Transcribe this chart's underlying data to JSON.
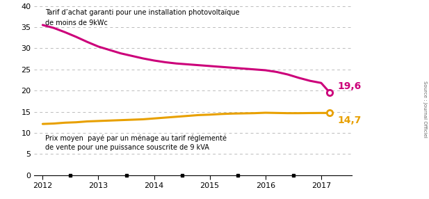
{
  "pink_x": [
    2012,
    2012.2,
    2012.4,
    2012.6,
    2012.8,
    2013,
    2013.2,
    2013.4,
    2013.6,
    2013.8,
    2014,
    2014.2,
    2014.4,
    2014.6,
    2014.8,
    2015,
    2015.2,
    2015.4,
    2015.6,
    2015.8,
    2016,
    2016.2,
    2016.4,
    2016.6,
    2016.8,
    2017,
    2017.15
  ],
  "pink_y": [
    35.5,
    34.8,
    33.8,
    32.7,
    31.5,
    30.4,
    29.6,
    28.8,
    28.2,
    27.6,
    27.1,
    26.7,
    26.4,
    26.2,
    26.0,
    25.8,
    25.6,
    25.4,
    25.2,
    25.0,
    24.8,
    24.4,
    23.8,
    23.0,
    22.3,
    21.8,
    19.6
  ],
  "orange_x": [
    2012,
    2012.2,
    2012.4,
    2012.6,
    2012.8,
    2013,
    2013.2,
    2013.4,
    2013.6,
    2013.8,
    2014,
    2014.2,
    2014.4,
    2014.6,
    2014.8,
    2015,
    2015.2,
    2015.4,
    2015.6,
    2015.8,
    2016,
    2016.2,
    2016.4,
    2016.6,
    2016.8,
    2017,
    2017.15
  ],
  "orange_y": [
    12.1,
    12.2,
    12.4,
    12.5,
    12.7,
    12.8,
    12.9,
    13.0,
    13.1,
    13.2,
    13.4,
    13.6,
    13.8,
    14.0,
    14.2,
    14.3,
    14.45,
    14.55,
    14.6,
    14.65,
    14.75,
    14.7,
    14.65,
    14.65,
    14.68,
    14.7,
    14.7
  ],
  "pink_color": "#cc007a",
  "orange_color": "#e8a000",
  "pink_label_value": "19,6",
  "orange_label_value": "14,7",
  "pink_annotation_line1": "Tarif d’achat garanti pour une installation photovoltaïque",
  "pink_annotation_line2": "de moins de 9kWc",
  "orange_annotation_line1": "Prix moyen  payé par un ménage au tarif réglementé",
  "orange_annotation_line2": "de vente pour une puissance souscrite de 9 kVA",
  "source_text": "Source : Journal Officiel",
  "xlim": [
    2011.85,
    2017.55
  ],
  "ylim": [
    0,
    40
  ],
  "yticks": [
    0,
    5,
    10,
    15,
    20,
    25,
    30,
    35,
    40
  ],
  "xticks": [
    2012,
    2013,
    2014,
    2015,
    2016,
    2017
  ],
  "mid_ticks": [
    2012.5,
    2013.5,
    2014.5,
    2015.5,
    2016.5
  ],
  "background_color": "#ffffff",
  "grid_color": "#bbbbbb"
}
